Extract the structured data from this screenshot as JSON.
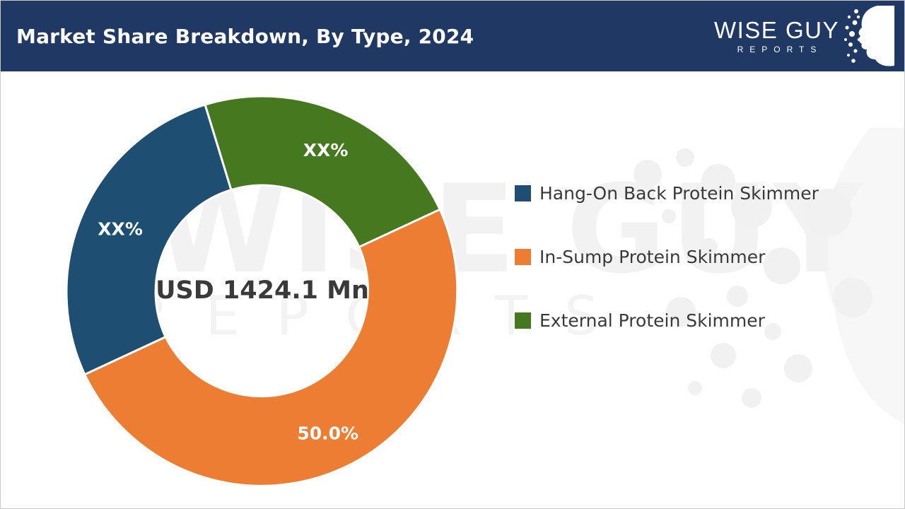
{
  "header": {
    "title": "Market Share Breakdown, By Type, 2024",
    "logo": {
      "wordmark": "WISE GUY",
      "subtext": "REPORTS"
    }
  },
  "watermark": {
    "line1": "WISE GUY",
    "line2": "REPORTS"
  },
  "colors": {
    "header_bg": "#1F3864",
    "page_bg": "#FFFFFF",
    "text_dark": "#3A3A3A",
    "slice_separator": "#FFFFFF"
  },
  "chart_data": {
    "type": "pie",
    "subtype": "donut",
    "title": "Market Share Breakdown, By Type, 2024",
    "center_label": "USD 1424.1 Mn",
    "total_value": 1424.1,
    "unit": "USD Mn",
    "start_angle_deg": -17,
    "draw_order": [
      2,
      1,
      0
    ],
    "donut_hole_ratio": 0.545,
    "legend_position": "right",
    "series": [
      {
        "name": "Hang-On Back Protein Skimmer",
        "value_pct": 27.2,
        "display_label": "XX%",
        "color": "#1F4E73"
      },
      {
        "name": "In-Sump Protein Skimmer",
        "value_pct": 50.0,
        "display_label": "50.0%",
        "color": "#EC7D33"
      },
      {
        "name": "External Protein Skimmer",
        "value_pct": 22.8,
        "display_label": "XX%",
        "color": "#45781F"
      }
    ]
  }
}
